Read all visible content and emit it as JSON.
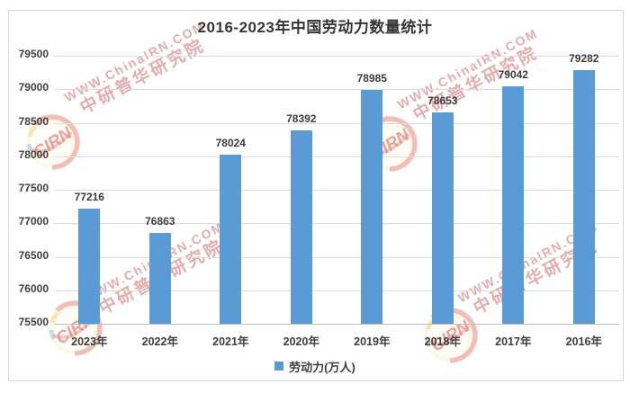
{
  "title": "2016-2023年中国劳动力数量统计",
  "legend": {
    "label": "劳动力(万人)",
    "color": "#5B9BD5"
  },
  "watermark": {
    "line1": "WWW.ChinaIRN.COM",
    "line2": "中研普华研究院",
    "logo_text": "CIRN"
  },
  "colors": {
    "bar": "#5B9BD5",
    "gridline": "#DCDCDC",
    "axis_line": "#BFBFBF",
    "watermark_red": "#D6453C"
  },
  "chart_data": {
    "type": "bar",
    "title": "2016-2023年中国劳动力数量统计",
    "categories": [
      "2023年",
      "2022年",
      "2021年",
      "2020年",
      "2019年",
      "2018年",
      "2017年",
      "2016年"
    ],
    "values": [
      77216,
      76863,
      78024,
      78392,
      78985,
      78653,
      79042,
      79282
    ],
    "series_name": "劳动力(万人)",
    "xlabel": "",
    "ylabel": "",
    "ylim": [
      75500,
      79500
    ],
    "ytick_step": 500,
    "yticks": [
      75500,
      76000,
      76500,
      77000,
      77500,
      78000,
      78500,
      79000,
      79500
    ],
    "bar_color": "#5B9BD5",
    "grid": true,
    "legend_position": "bottom",
    "value_labels": true
  }
}
